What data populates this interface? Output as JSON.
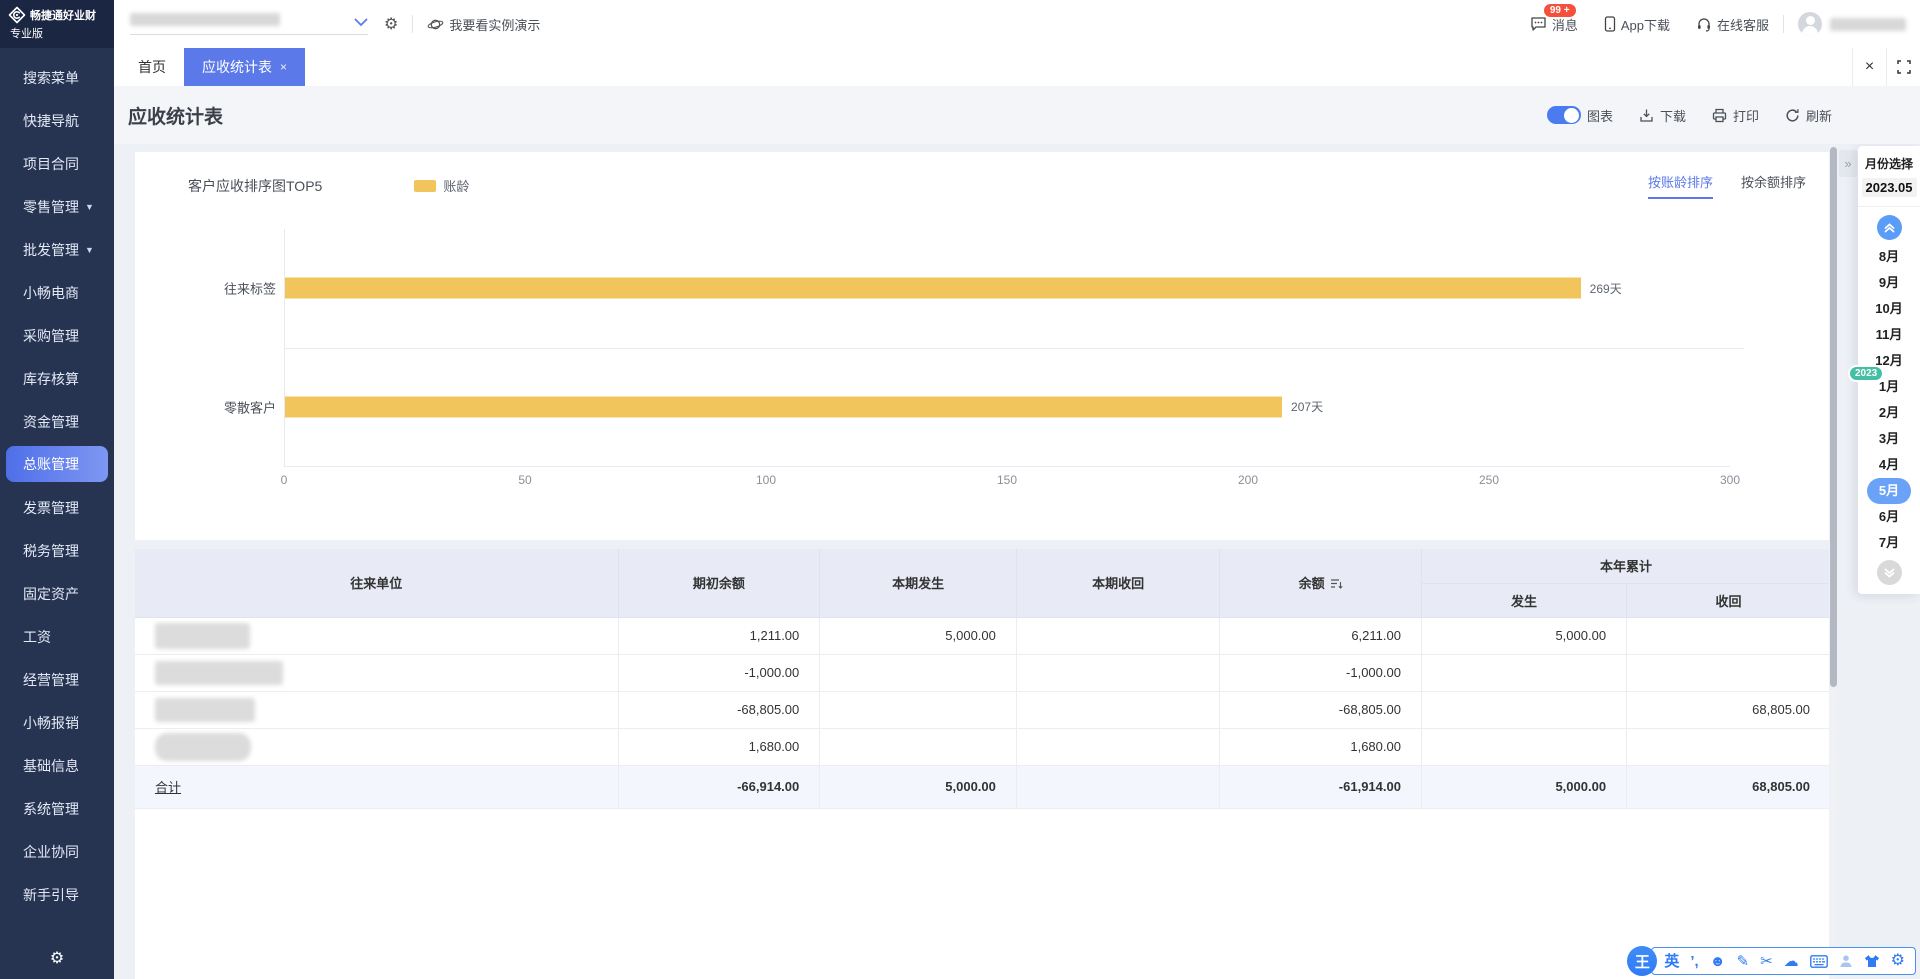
{
  "app": {
    "brand": "畅捷通好业财",
    "edition": "专业版"
  },
  "topbar": {
    "demo_link": "我要看实例演示",
    "messages": "消息",
    "messages_badge": "99 +",
    "app_download": "App下载",
    "online_support": "在线客服"
  },
  "tab_bar": {
    "tabs": [
      {
        "label": "首页",
        "active": false,
        "closable": false
      },
      {
        "label": "应收统计表",
        "active": true,
        "closable": true
      }
    ]
  },
  "page": {
    "title": "应收统计表",
    "toolbar": {
      "chart_toggle_label": "图表",
      "download_label": "下载",
      "print_label": "打印",
      "refresh_label": "刷新"
    }
  },
  "sidebar": {
    "items": [
      {
        "label": "搜索菜单"
      },
      {
        "label": "快捷导航"
      },
      {
        "label": "项目合同"
      },
      {
        "label": "零售管理",
        "expandable": true
      },
      {
        "label": "批发管理",
        "expandable": true
      },
      {
        "label": "小畅电商"
      },
      {
        "label": "采购管理"
      },
      {
        "label": "库存核算"
      },
      {
        "label": "资金管理"
      },
      {
        "label": "总账管理",
        "active": true
      },
      {
        "label": "发票管理"
      },
      {
        "label": "税务管理"
      },
      {
        "label": "固定资产"
      },
      {
        "label": "工资"
      },
      {
        "label": "经营管理"
      },
      {
        "label": "小畅报销"
      },
      {
        "label": "基础信息"
      },
      {
        "label": "系统管理"
      },
      {
        "label": "企业协同"
      },
      {
        "label": "新手引导"
      }
    ]
  },
  "chart_header": {
    "title": "客户应收排序图TOP5",
    "legend_label": "账龄",
    "sort_tabs": [
      {
        "label": "按账龄排序",
        "active": true
      },
      {
        "label": "按余额排序",
        "active": false
      }
    ]
  },
  "chart_data": {
    "type": "bar",
    "orientation": "horizontal",
    "title": "客户应收排序图TOP5",
    "legend": [
      "账龄"
    ],
    "categories": [
      "往来标签",
      "零散客户"
    ],
    "values": [
      269,
      207
    ],
    "value_labels": [
      "269天",
      "207天"
    ],
    "unit": "天",
    "xlim": [
      0,
      300
    ],
    "xticks": [
      0,
      50,
      100,
      150,
      200,
      250,
      300
    ],
    "bar_color": "#F2C55C",
    "grid": "category split line, left and bottom axis lines"
  },
  "table": {
    "columns": [
      "往来单位",
      "期初余额",
      "本期发生",
      "本期收回",
      "余额"
    ],
    "group_column": {
      "label": "本年累计",
      "children": [
        "发生",
        "收回"
      ]
    },
    "rows": [
      {
        "unit": "",
        "values": [
          "1,211.00",
          "5,000.00",
          "",
          "6,211.00",
          "5,000.00",
          ""
        ]
      },
      {
        "unit": "",
        "values": [
          "-1,000.00",
          "",
          "",
          "-1,000.00",
          "",
          ""
        ]
      },
      {
        "unit": "",
        "values": [
          "-68,805.00",
          "",
          "",
          "-68,805.00",
          "",
          "68,805.00"
        ]
      },
      {
        "unit": "",
        "values": [
          "1,680.00",
          "",
          "",
          "1,680.00",
          "",
          ""
        ]
      }
    ],
    "total_row": {
      "label": "合计",
      "values": [
        "-66,914.00",
        "5,000.00",
        "",
        "-61,914.00",
        "5,000.00",
        "68,805.00"
      ]
    }
  },
  "month_panel": {
    "title": "月份选择",
    "current": "2023.05",
    "months": [
      {
        "label": "8月"
      },
      {
        "label": "9月"
      },
      {
        "label": "10月"
      },
      {
        "label": "11月"
      },
      {
        "label": "12月"
      },
      {
        "label": "1月",
        "year_badge": "2023"
      },
      {
        "label": "2月"
      },
      {
        "label": "3月"
      },
      {
        "label": "4月"
      },
      {
        "label": "5月",
        "active": true
      },
      {
        "label": "6月"
      },
      {
        "label": "7月"
      }
    ]
  },
  "ime_bar": {
    "logo": "王",
    "lang": "英",
    "punct": "’,"
  },
  "colors": {
    "accent": "#5B79E8",
    "sidebar_bg": "#263452",
    "bar": "#F2C55C",
    "month_active": "#6AA2F8",
    "badge_red": "#F5503C",
    "year_badge": "#44BFA4"
  }
}
